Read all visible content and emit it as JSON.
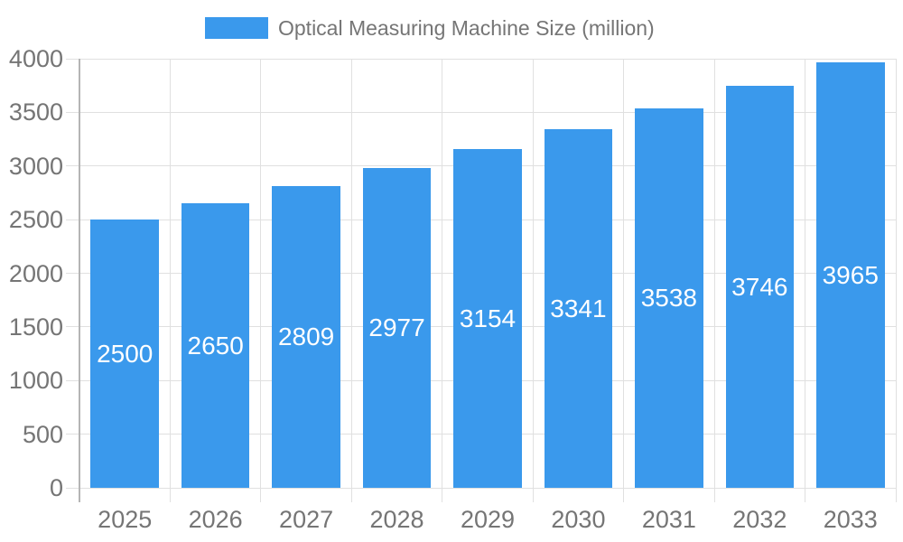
{
  "chart_data": {
    "type": "bar",
    "title": "Optical Measuring Machine Size (million)",
    "legend": [
      "Optical Measuring Machine Size (million)"
    ],
    "legend_position": "top",
    "categories": [
      "2025",
      "2026",
      "2027",
      "2028",
      "2029",
      "2030",
      "2031",
      "2032",
      "2033"
    ],
    "values": [
      2500,
      2650,
      2809,
      2977,
      3154,
      3341,
      3538,
      3746,
      3965
    ],
    "xlabel": "",
    "ylabel": "",
    "ylim": [
      0,
      4000
    ],
    "yticks": [
      0,
      500,
      1000,
      1500,
      2000,
      2500,
      3000,
      3500,
      4000
    ],
    "grid": true,
    "value_labels": "inside-center",
    "colors": {
      "bar": "#3A99EC",
      "grid": "#E0E0E0",
      "axis_line": "#B5B5B5",
      "text": "#757575",
      "value_label": "#FFFFFF",
      "background": "#FFFFFF"
    }
  }
}
